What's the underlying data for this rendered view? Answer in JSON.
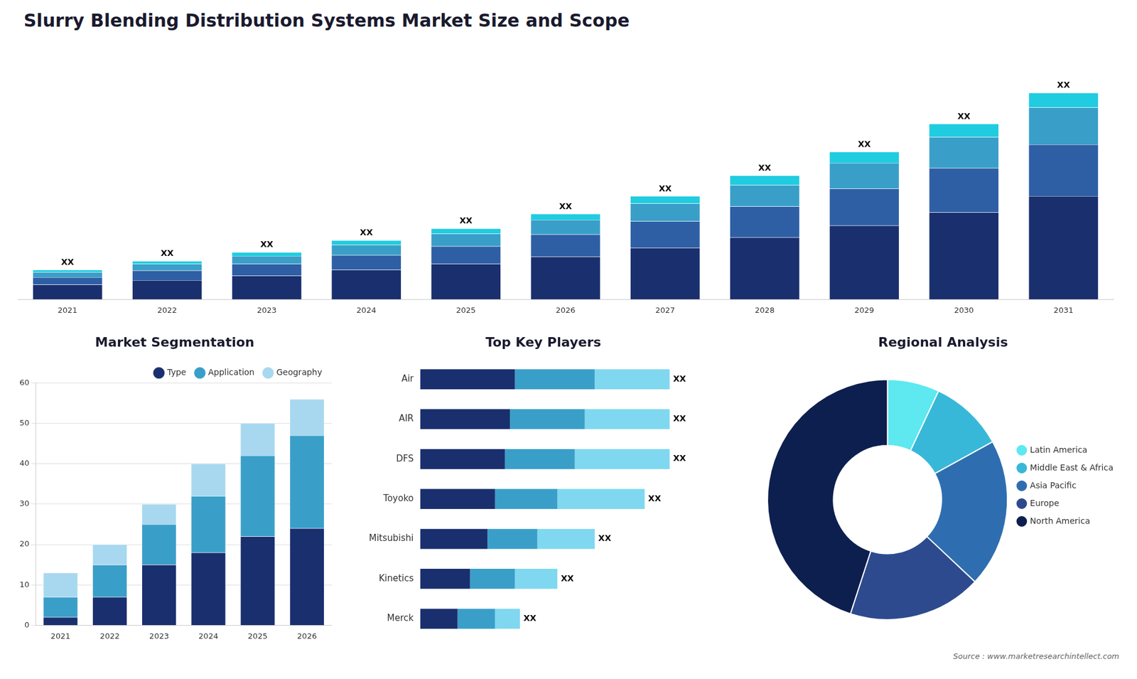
{
  "chart_data": [
    {
      "type": "bar",
      "title": "Slurry Blending Distribution Systems Market Size and Scope",
      "categories": [
        2021,
        2022,
        2023,
        2024,
        2025,
        2026,
        2027,
        2028,
        2029,
        2030,
        2031
      ],
      "series": [
        {
          "color": "#1a2f6e",
          "values": [
            1.0,
            1.3,
            1.6,
            2.0,
            2.4,
            2.9,
            3.5,
            4.2,
            5.0,
            5.9,
            7.0
          ]
        },
        {
          "color": "#2e5fa5",
          "values": [
            0.5,
            0.65,
            0.8,
            1.0,
            1.2,
            1.5,
            1.8,
            2.1,
            2.5,
            3.0,
            3.5
          ]
        },
        {
          "color": "#3a9fc8",
          "values": [
            0.35,
            0.45,
            0.55,
            0.7,
            0.85,
            1.0,
            1.2,
            1.45,
            1.75,
            2.1,
            2.5
          ]
        },
        {
          "color": "#20cce0",
          "values": [
            0.15,
            0.2,
            0.25,
            0.3,
            0.35,
            0.4,
            0.5,
            0.65,
            0.75,
            0.9,
            1.0
          ]
        }
      ],
      "stacked": true,
      "ylim": [
        0,
        17.08
      ],
      "tick_labels": "x",
      "grid": false,
      "annotations": [
        "XX",
        "XX",
        "XX",
        "XX",
        "XX",
        "XX",
        "XX",
        "XX",
        "XX",
        "XX",
        "XX"
      ]
    },
    {
      "type": "bar",
      "title": "Market Segmentation",
      "categories": [
        2021,
        2022,
        2023,
        2024,
        2025,
        2026
      ],
      "series": [
        {
          "name": "Type",
          "color": "#1a2f6e",
          "values": [
            2,
            7,
            15,
            18,
            22,
            24
          ]
        },
        {
          "name": "Application",
          "color": "#3a9fc8",
          "values": [
            5,
            8,
            10,
            14,
            20,
            23
          ]
        },
        {
          "name": "Geography",
          "color": "#a8d8f0",
          "values": [
            6,
            5,
            5,
            8,
            8,
            9
          ]
        }
      ],
      "stacked": true,
      "ylim": [
        0,
        60
      ],
      "yticks": [
        0,
        10,
        20,
        30,
        40,
        50,
        60
      ],
      "grid": true,
      "legend": "upper right"
    },
    {
      "type": "bar",
      "title": "Top Key Players",
      "orientation": "horizontal",
      "categories": [
        "Air",
        "AIR",
        "DFS",
        "Toyoko",
        "Mitsubishi",
        "Kinetics",
        "Merck"
      ],
      "series": [
        {
          "color": "#1a2f6e",
          "values": [
            0.38,
            0.36,
            0.34,
            0.3,
            0.27,
            0.2,
            0.15
          ]
        },
        {
          "color": "#3a9fc8",
          "values": [
            0.32,
            0.3,
            0.28,
            0.25,
            0.2,
            0.18,
            0.15
          ]
        },
        {
          "color": "#7fd8f0",
          "values": [
            0.3,
            0.34,
            0.38,
            0.35,
            0.23,
            0.17,
            0.1
          ]
        }
      ],
      "stacked": true,
      "xlim": [
        0,
        1.2
      ],
      "tick_labels": "y",
      "grid": false,
      "annotations": [
        "XX",
        "XX",
        "XX",
        "XX",
        "XX",
        "XX",
        "XX"
      ]
    },
    {
      "type": "doughnut",
      "title": "Regional Analysis",
      "categories": [
        "Latin America",
        "Middle East &\nAfrica",
        "Asia Pacific",
        "Europe",
        "North America"
      ],
      "values": [
        7,
        10,
        20,
        18,
        45
      ],
      "colors": [
        "#5ee8f0",
        "#38b8d8",
        "#2e6eb0",
        "#2e4a8e",
        "#0d1f4e"
      ],
      "legend": "right",
      "annotations": [
        "Source : www.marketresearchintellect.com"
      ]
    }
  ]
}
